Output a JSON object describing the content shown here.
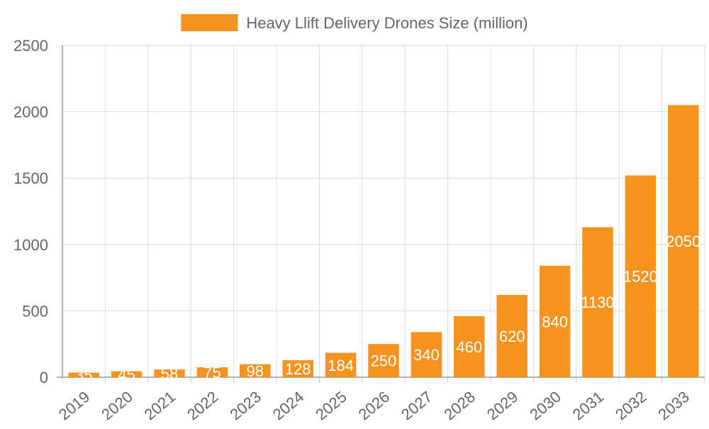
{
  "chart_data": {
    "type": "bar",
    "title": "",
    "xlabel": "",
    "ylabel": "",
    "legend": {
      "position": "top",
      "entries": [
        "Heavy Llift Delivery Drones Size (million)"
      ]
    },
    "categories": [
      "2019",
      "2020",
      "2021",
      "2022",
      "2023",
      "2024",
      "2025",
      "2026",
      "2027",
      "2028",
      "2029",
      "2030",
      "2031",
      "2032",
      "2033"
    ],
    "series": [
      {
        "name": "Heavy Llift Delivery Drones Size (million)",
        "values": [
          35,
          45,
          58,
          75,
          98,
          128,
          184,
          250,
          340,
          460,
          620,
          840,
          1130,
          1520,
          2050
        ],
        "color": "#f7931e"
      }
    ],
    "ylim": [
      0,
      2500
    ],
    "yticks": [
      0,
      500,
      1000,
      1500,
      2000,
      2500
    ],
    "grid": true,
    "data_labels": true,
    "data_label_color": "#ffffff"
  }
}
